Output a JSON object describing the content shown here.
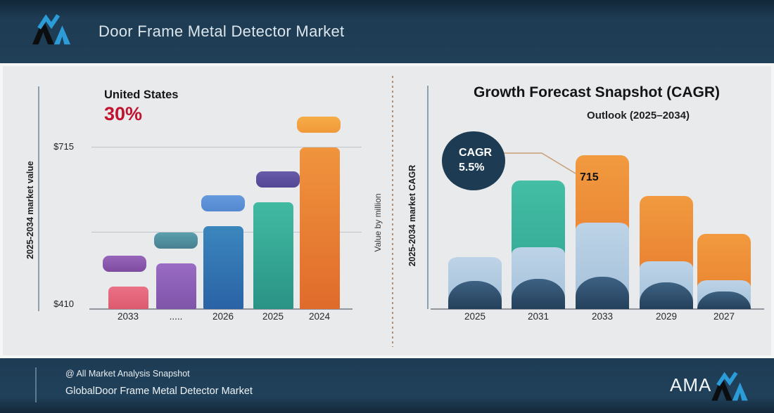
{
  "header": {
    "title": "Door Frame Metal Detector Market",
    "brand": "AMA"
  },
  "left_chart": {
    "heading": "United States",
    "highlight": "30%",
    "highlight_color": "#c1122f",
    "y_axis_label": "2025-2034 market value",
    "y_tick_top": "$715",
    "y_tick_bottom": "$410",
    "side_label": "Value by million",
    "categories": [
      "2033",
      ".....",
      "2026",
      "2025",
      "2024"
    ]
  },
  "right_chart": {
    "title": "Growth Forecast Snapshot (CAGR)",
    "subtitle": "Outlook (2025–2034)",
    "y_axis_label": "2025-2034 market CAGR",
    "badge": {
      "line1": "CAGR",
      "line2": "5.5%"
    },
    "callout": "715",
    "categories": [
      "2025",
      "2031",
      "2033",
      "2029",
      "2027"
    ]
  },
  "footer": {
    "note": "@ All Market Analysis Snapshot",
    "title": "GlobalDoor Frame Metal Detector Market",
    "brand": "AMA"
  },
  "chart_data": [
    {
      "type": "bar",
      "title": "United States market value (30% highlighted share)",
      "categories": [
        "2033",
        ".....",
        "2026",
        "2025",
        "2024"
      ],
      "values": [
        452,
        496,
        566,
        612,
        715
      ],
      "baseline": 410,
      "yticks": [
        410,
        715
      ],
      "ylabel": "2025-2034 market value",
      "ylabel_right": "Value by million",
      "grid": "two horizontal gridlines at 715 and ~562",
      "legend": "none",
      "bar_colors": [
        [
          "#ea7186",
          "#dd5a6e"
        ],
        [
          "#9a6cc3",
          "#7e54a9"
        ],
        [
          "#3b86bd",
          "#2a63a6"
        ],
        [
          "#41baa2",
          "#2a9385"
        ],
        [
          "#f0943d",
          "#e06b2b"
        ]
      ],
      "cap_colors": [
        [
          "#9766bb",
          "#7e4ba0"
        ],
        [
          "#5b9fae",
          "#47808f"
        ],
        [
          "#659ade",
          "#5388cf"
        ],
        [
          "#675aa9",
          "#534694"
        ],
        [
          "#f6ad47",
          "#f0993a"
        ]
      ]
    },
    {
      "type": "stacked-bar",
      "title": "Growth Forecast Snapshot (CAGR)",
      "subtitle": "Outlook (2025–2034)",
      "categories": [
        "2025",
        "2031",
        "2033",
        "2029",
        "2027"
      ],
      "totals_estimated": [
        242,
        598,
        715,
        526,
        350
      ],
      "annotated_value": {
        "category": "2033",
        "value": 715
      },
      "cagr": "5.5%",
      "ylabel": "2025-2034 market CAGR",
      "legend": "none",
      "series": [
        {
          "name": "base",
          "values": [
            131,
            140,
            150,
            124,
            82
          ],
          "colors": [
            "#3e6283",
            "#24405b"
          ]
        },
        {
          "name": "mid",
          "values": [
            111,
            147,
            250,
            98,
            52
          ],
          "colors": [
            "#bdd3e7",
            "#a3c0d9"
          ]
        },
        {
          "name": "top",
          "values": [
            0,
            311,
            315,
            304,
            216
          ],
          "top_colors": [
            null,
            [
              "#44bea5",
              "#2da18e"
            ],
            [
              "#f19a3f",
              "#e5762c"
            ],
            [
              "#f19a3f",
              "#e5762c"
            ],
            [
              "#f29a3f",
              "#e9802e"
            ]
          ]
        }
      ]
    }
  ]
}
